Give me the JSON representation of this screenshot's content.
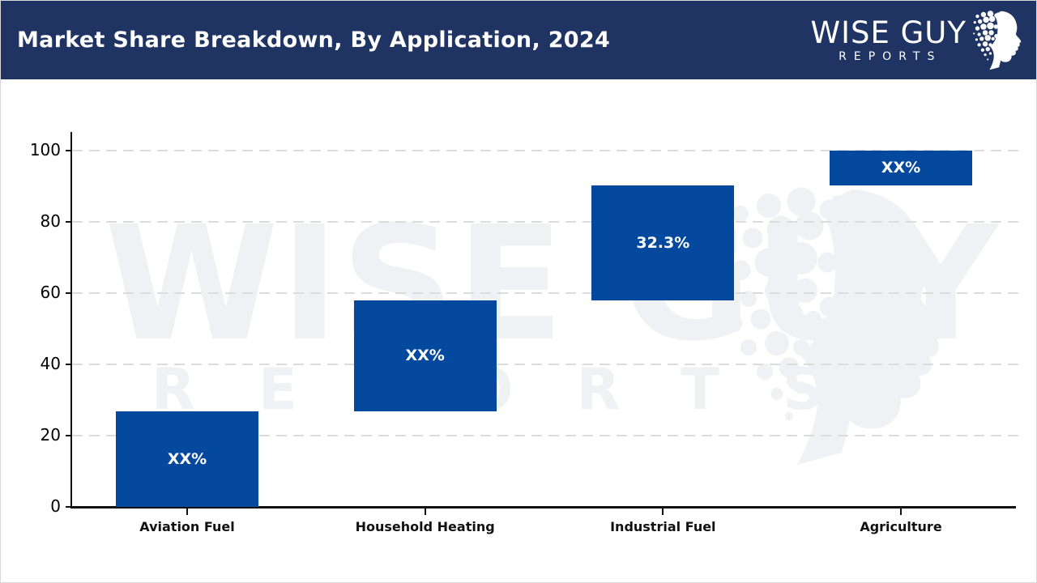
{
  "header": {
    "title": "Market Share Breakdown, By Application, 2024",
    "logo": {
      "line1": "WISE GUY",
      "line2": "REPORTS"
    }
  },
  "watermark": {
    "line1": "WISE GUY",
    "line2": "REPORTS"
  },
  "chart_data": {
    "type": "bar",
    "subtype": "waterfall-floating-bars",
    "title": "Market Share Breakdown, By Application, 2024",
    "categories": [
      "Aviation Fuel",
      "Household Heating",
      "Industrial Fuel",
      "Agriculture"
    ],
    "segments": [
      {
        "category": "Aviation Fuel",
        "start": 0,
        "end": 26.8,
        "label": "XX%"
      },
      {
        "category": "Household Heating",
        "start": 26.8,
        "end": 58.0,
        "label": "XX%"
      },
      {
        "category": "Industrial Fuel",
        "start": 58.0,
        "end": 90.3,
        "label": "32.3%"
      },
      {
        "category": "Agriculture",
        "start": 90.3,
        "end": 100,
        "label": "XX%"
      }
    ],
    "xlabel": "",
    "ylabel": "",
    "yticks": [
      0,
      20,
      40,
      60,
      80,
      100
    ],
    "ylim": [
      0,
      105
    ],
    "grid": "horizontal-dashed",
    "legend": "none",
    "bar_color": "#05499e",
    "bar_label_color": "#ffffff"
  },
  "colors": {
    "header_bg": "#1f3463",
    "bar_blue": "#05499e",
    "watermark_gray": "#f0f1f4",
    "grid_gray": "#dcdcdc",
    "axis_black": "#111111",
    "frame_border": "#d9d9d9"
  }
}
